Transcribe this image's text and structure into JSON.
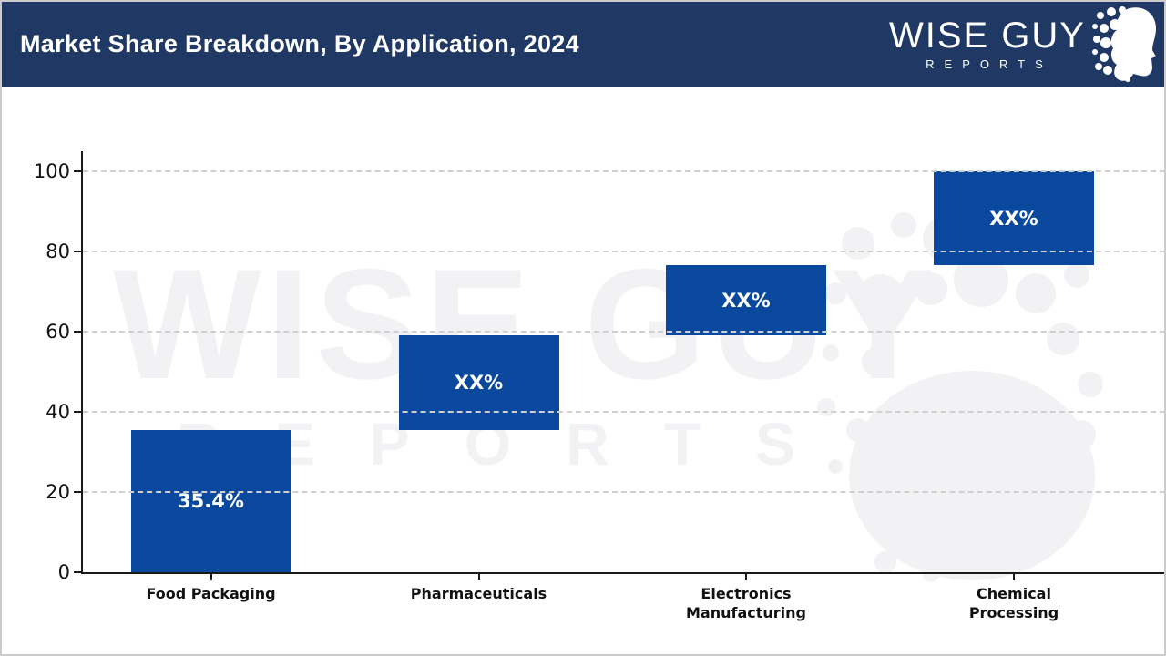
{
  "header": {
    "title": "Market Share Breakdown, By Application, 2024"
  },
  "logo": {
    "line1": "WISE GUY",
    "line2": "REPORTS",
    "face_icon": "dotted-face-profile"
  },
  "watermark": {
    "line1": "WISE GUY",
    "line2": "REPORTS",
    "face_icon": "dotted-face-profile"
  },
  "colors": {
    "header_bg": "#1f3864",
    "bar_fill": "#0a489e",
    "grid": "#cfcfcf",
    "axis": "#1a1a1a",
    "watermark": "#f2f2f4",
    "label_on_bar": "#ffffff"
  },
  "chart_data": {
    "type": "bar",
    "subtype": "waterfall",
    "title": "Market Share Breakdown, By Application, 2024",
    "categories": [
      "Food Packaging",
      "Pharmaceuticals",
      "Electronics Manufacturing",
      "Chemical Processing"
    ],
    "category_lines": [
      [
        "Food Packaging"
      ],
      [
        "Pharmaceuticals"
      ],
      [
        "Electronics",
        "Manufacturing"
      ],
      [
        "Chemical",
        "Processing"
      ]
    ],
    "segments": [
      {
        "category": "Food Packaging",
        "start": 0,
        "end": 35.4,
        "label": "35.4%"
      },
      {
        "category": "Pharmaceuticals",
        "start": 35.4,
        "end": 59,
        "label": "XX%"
      },
      {
        "category": "Electronics Manufacturing",
        "start": 59,
        "end": 76.5,
        "label": "XX%"
      },
      {
        "category": "Chemical Processing",
        "start": 76.5,
        "end": 100,
        "label": "XX%"
      }
    ],
    "y_ticks": [
      0,
      20,
      40,
      60,
      80,
      100
    ],
    "ylim": [
      0,
      105
    ],
    "xlabel": "",
    "ylabel": "",
    "grid": "dashed-horizontal",
    "legend": "none",
    "value_labels_inside_bars": true
  }
}
